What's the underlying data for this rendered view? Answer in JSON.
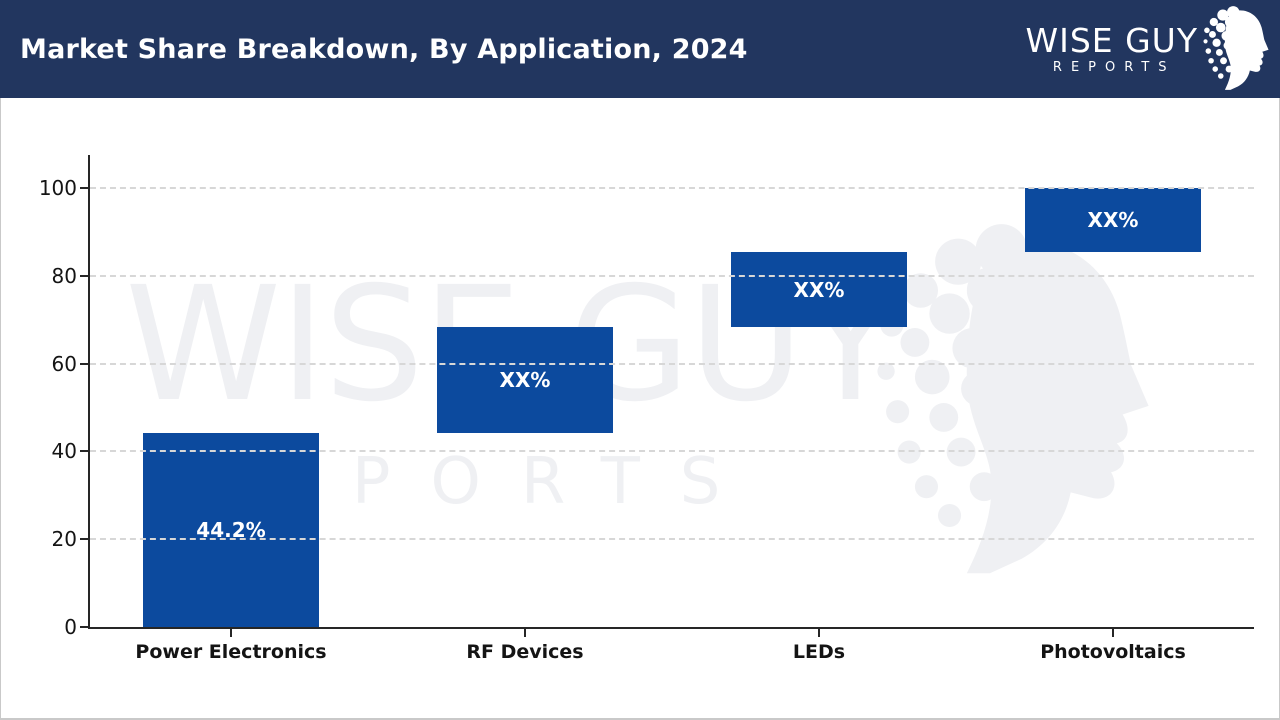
{
  "header": {
    "title": "Market Share Breakdown, By Application, 2024",
    "logo": {
      "line1": "WISE GUY",
      "line2": "REPORTS"
    }
  },
  "watermark": {
    "line1": "WISE GUY",
    "line2": "REPORTS"
  },
  "colors": {
    "header_bg": "#22365f",
    "bar": "#0c4a9e",
    "bar_label": "#ffffff",
    "gridline": "#d7d7d7",
    "axis": "#262626",
    "watermark": "#eff0f3"
  },
  "chart_data": {
    "type": "bar",
    "subtype": "waterfall",
    "title": "Market Share Breakdown, By Application, 2024",
    "categories": [
      "Power Electronics",
      "RF Devices",
      "LEDs",
      "Photovoltaics"
    ],
    "segments": [
      {
        "category": "Power Electronics",
        "start": 0,
        "end": 44.2,
        "label": "44.2%"
      },
      {
        "category": "RF Devices",
        "start": 44.2,
        "end": 68.3,
        "label": "XX%"
      },
      {
        "category": "LEDs",
        "start": 68.3,
        "end": 85.4,
        "label": "XX%"
      },
      {
        "category": "Photovoltaics",
        "start": 85.4,
        "end": 100,
        "label": "XX%"
      }
    ],
    "xlabel": "",
    "ylabel": "",
    "ylim": [
      0,
      100
    ],
    "yticks": [
      0,
      20,
      40,
      60,
      80,
      100
    ],
    "grid": {
      "horizontal": true,
      "style": "dashed",
      "drawn_over_bars": true
    },
    "legend": null
  }
}
